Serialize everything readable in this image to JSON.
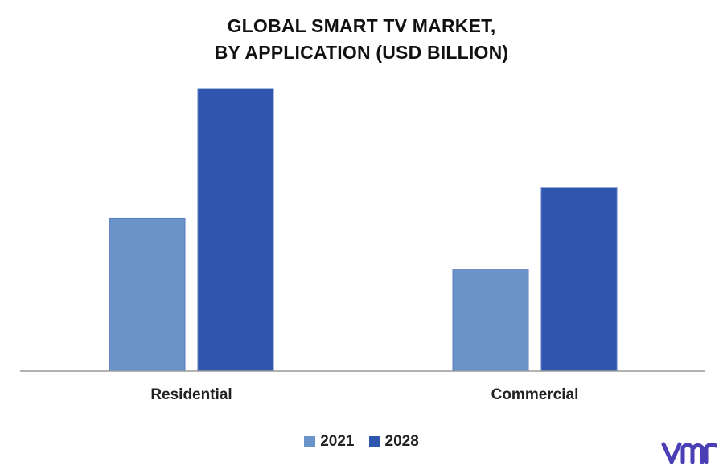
{
  "chart_data": {
    "type": "bar",
    "title_lines": [
      "GLOBAL SMART TV MARKET,",
      "BY APPLICATION (USD BILLION)"
    ],
    "categories": [
      "Residential",
      "Commercial"
    ],
    "series": [
      {
        "name": "2021",
        "color": "#6a93c9",
        "values": [
          54,
          36
        ]
      },
      {
        "name": "2028",
        "color": "#2e56ae",
        "values": [
          100,
          65
        ]
      }
    ],
    "ylim": [
      0,
      100
    ],
    "grid": false,
    "legend_position": "bottom"
  },
  "colors": {
    "axis": "#9a9a9a",
    "bar_border": "#5a7bc0",
    "logo": "#4a3fb5"
  },
  "logo_icon": "vmr-logo-icon"
}
